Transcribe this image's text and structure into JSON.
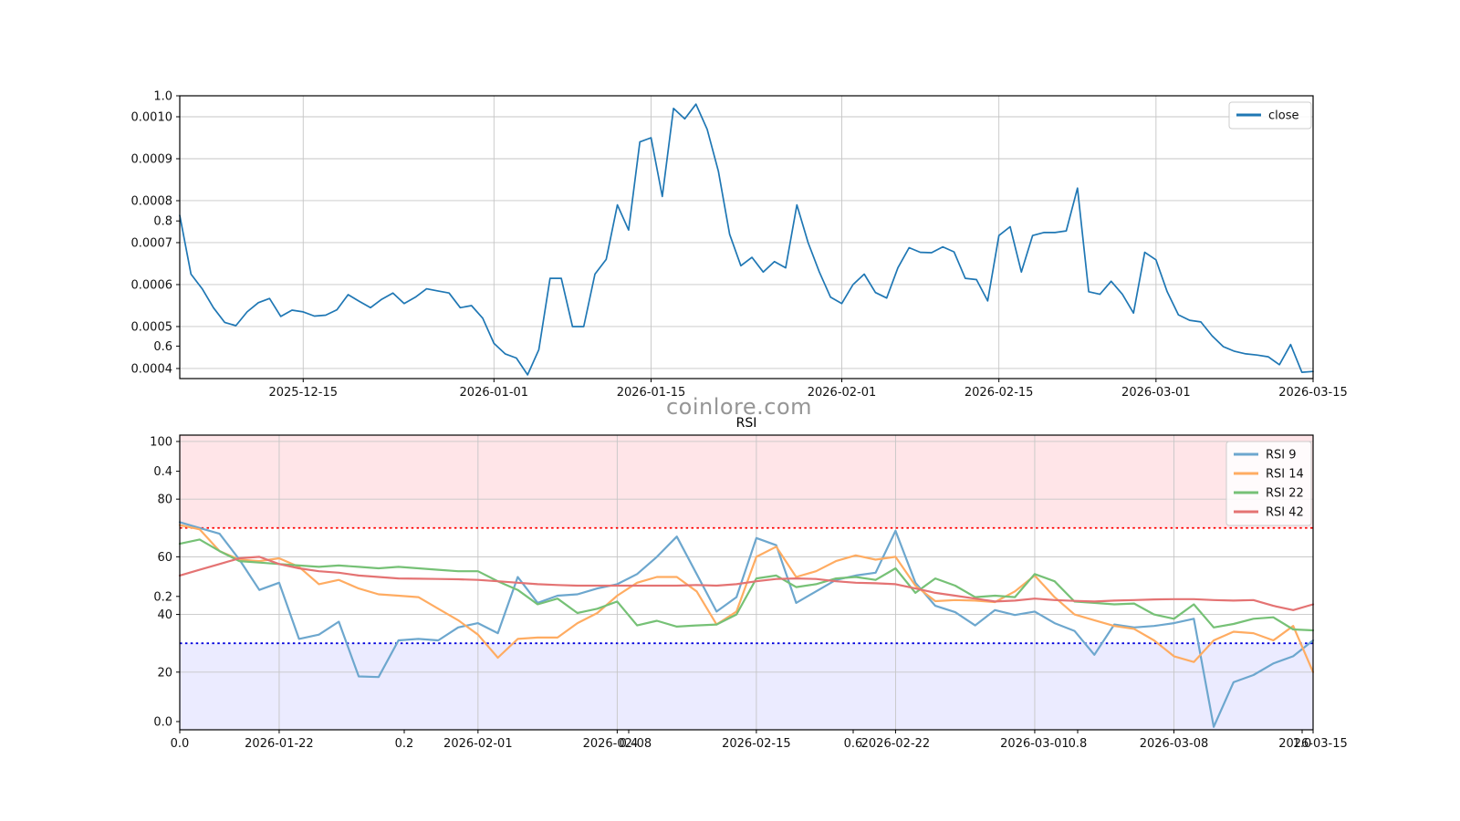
{
  "watermark": "coinlore.com",
  "overlay_axis": {
    "y_labels": [
      "1.0",
      "0.8",
      "0.6",
      "0.4",
      "0.2",
      "0.0"
    ],
    "x_labels": [
      "0.0",
      "0.2",
      "0.4",
      "0.6",
      "0.8",
      "1.0"
    ]
  },
  "chart_data": [
    {
      "type": "line",
      "panel": "price",
      "title": "",
      "x_start": "2025-12-04",
      "x_end": "2026-03-15",
      "ylim": [
        0.000376,
        0.00105
      ],
      "grid": true,
      "x_ticks": [
        {
          "label": "2025-12-15",
          "date": "2025-12-15"
        },
        {
          "label": "2026-01-01",
          "date": "2026-01-01"
        },
        {
          "label": "2026-01-15",
          "date": "2026-01-15"
        },
        {
          "label": "2026-02-01",
          "date": "2026-02-01"
        },
        {
          "label": "2026-02-15",
          "date": "2026-02-15"
        },
        {
          "label": "2026-03-01",
          "date": "2026-03-01"
        },
        {
          "label": "2026-03-15",
          "date": "2026-03-15"
        }
      ],
      "y_ticks": [
        {
          "label": "0.0010",
          "value": 0.001
        },
        {
          "label": "0.0009",
          "value": 0.0009
        },
        {
          "label": "0.0008",
          "value": 0.0008
        },
        {
          "label": "0.0007",
          "value": 0.0007
        },
        {
          "label": "0.0006",
          "value": 0.0006
        },
        {
          "label": "0.0005",
          "value": 0.0005
        },
        {
          "label": "0.0004",
          "value": 0.0004
        }
      ],
      "legend": {
        "position": "upper right",
        "entries": [
          "close"
        ]
      },
      "series": [
        {
          "name": "close",
          "color": "#1f77b4",
          "width": 1.7,
          "values": [
            0.000765,
            0.000625,
            0.00059,
            0.000545,
            0.00051,
            0.000502,
            0.000535,
            0.000557,
            0.000567,
            0.000524,
            0.000539,
            0.000535,
            0.000525,
            0.000527,
            0.00054,
            0.000576,
            0.00056,
            0.000545,
            0.000565,
            0.00058,
            0.000555,
            0.00057,
            0.00059,
            0.000585,
            0.00058,
            0.000545,
            0.00055,
            0.00052,
            0.00046,
            0.000435,
            0.000425,
            0.000385,
            0.000445,
            0.000615,
            0.000615,
            0.0005,
            0.0005,
            0.000625,
            0.00066,
            0.00079,
            0.00073,
            0.00094,
            0.00095,
            0.00081,
            0.00102,
            0.000995,
            0.00103,
            0.00097,
            0.00087,
            0.00072,
            0.000645,
            0.000665,
            0.00063,
            0.000655,
            0.00064,
            0.00079,
            0.0007,
            0.00063,
            0.00057,
            0.000555,
            0.0006,
            0.000625,
            0.000581,
            0.000568,
            0.00064,
            0.000688,
            0.000677,
            0.000676,
            0.00069,
            0.000678,
            0.000615,
            0.000612,
            0.000561,
            0.000717,
            0.000738,
            0.00063,
            0.000717,
            0.000724,
            0.000724,
            0.000728,
            0.00083,
            0.000583,
            0.000577,
            0.000608,
            0.000577,
            0.000532,
            0.000677,
            0.000659,
            0.000583,
            0.000528,
            0.000515,
            0.000511,
            0.000478,
            0.000452,
            0.000441,
            0.000435,
            0.000432,
            0.000428,
            0.000409,
            0.000457,
            0.000391,
            0.000393
          ]
        }
      ]
    },
    {
      "type": "line",
      "panel": "rsi",
      "title": "RSI",
      "x_start": "2026-01-17",
      "x_end": "2026-03-15",
      "ylim": [
        0,
        102.2
      ],
      "grid": true,
      "bands": [
        {
          "name": "overbought-band",
          "from": 70,
          "to": 102.2,
          "color": "rgba(255,0,30,0.10)"
        },
        {
          "name": "oversold-band",
          "from": 0,
          "to": 30,
          "color": "rgba(60,60,255,0.10)"
        }
      ],
      "hlines": [
        {
          "name": "overbought-line",
          "value": 70,
          "color": "#ff0000"
        },
        {
          "name": "oversold-line",
          "value": 30,
          "color": "#0000dd"
        }
      ],
      "x_ticks": [
        {
          "label": "2026-01-22",
          "date": "2026-01-22"
        },
        {
          "label": "2026-02-01",
          "date": "2026-02-01"
        },
        {
          "label": "2026-02-08",
          "date": "2026-02-08"
        },
        {
          "label": "2026-02-15",
          "date": "2026-02-15"
        },
        {
          "label": "2026-02-22",
          "date": "2026-02-22"
        },
        {
          "label": "2026-03-01",
          "date": "2026-03-01"
        },
        {
          "label": "2026-03-08",
          "date": "2026-03-08"
        },
        {
          "label": "2026-03-15",
          "date": "2026-03-15"
        }
      ],
      "y_ticks": [
        {
          "label": "100",
          "value": 100
        },
        {
          "label": "80",
          "value": 80
        },
        {
          "label": "60",
          "value": 60
        },
        {
          "label": "40",
          "value": 40
        },
        {
          "label": "20",
          "value": 20
        }
      ],
      "legend": {
        "position": "upper right",
        "entries": [
          "RSI 9",
          "RSI 14",
          "RSI 22",
          "RSI 42"
        ]
      },
      "series": [
        {
          "name": "RSI 9",
          "color": "#6da7ce",
          "width": 2.2,
          "values": [
            72,
            70,
            68,
            59,
            48.5,
            51,
            31.5,
            33,
            37.5,
            18.5,
            18.3,
            31,
            31.5,
            31,
            35.5,
            37,
            33.5,
            53,
            44,
            46.5,
            47,
            49,
            50.5,
            54,
            60,
            67,
            54,
            41,
            46,
            66.5,
            64,
            44,
            48,
            52,
            53.5,
            54.5,
            69,
            51,
            43,
            40.8,
            36.2,
            41.5,
            39.8,
            41,
            37,
            34.3,
            26,
            36.5,
            35.5,
            36,
            37,
            38.5,
            1,
            16.5,
            19,
            23,
            25.5,
            31
          ]
        },
        {
          "name": "RSI 14",
          "color": "#ffac62",
          "width": 2.2,
          "values": [
            71,
            69.5,
            62,
            59,
            58.5,
            59.5,
            56.5,
            50.5,
            52,
            49,
            47,
            46.5,
            46,
            42,
            38,
            33,
            25,
            31.5,
            32,
            32,
            37,
            40.5,
            46.5,
            51,
            53,
            53,
            48,
            36.5,
            41,
            60,
            63.5,
            53,
            55,
            58.5,
            60.5,
            59,
            60,
            50,
            44.6,
            45,
            44.8,
            44.3,
            48,
            53.5,
            46,
            40,
            38,
            36,
            35,
            31,
            25.5,
            23.5,
            31,
            34,
            33.5,
            31,
            36,
            20
          ]
        },
        {
          "name": "RSI 22",
          "color": "#76c176",
          "width": 2.2,
          "values": [
            64.5,
            66,
            62,
            58.5,
            58,
            57.5,
            57,
            56.5,
            57,
            56.5,
            56,
            56.5,
            56,
            55.5,
            55,
            55,
            51.5,
            48.5,
            43.5,
            45.5,
            40.5,
            42,
            44.5,
            36.2,
            37.8,
            35.8,
            36.2,
            36.5,
            40,
            52.5,
            53.5,
            49.5,
            50.5,
            52.5,
            53,
            52,
            56,
            47.5,
            52.5,
            50,
            46,
            46.5,
            46,
            54,
            51.5,
            44.5,
            44,
            43.5,
            43.8,
            40,
            38.5,
            43.5,
            35.5,
            36.7,
            38.5,
            39,
            34.8,
            34.5
          ]
        },
        {
          "name": "RSI 42",
          "color": "#e47373",
          "width": 2.2,
          "values": [
            53.5,
            55.5,
            57.5,
            59.5,
            60,
            57.5,
            56,
            55,
            54.5,
            53.5,
            53,
            52.5,
            52.4,
            52.3,
            52.2,
            52,
            51.5,
            51,
            50.5,
            50.2,
            50,
            50,
            50,
            50,
            50,
            50,
            50.2,
            50,
            50.5,
            51.5,
            52.3,
            52.5,
            52.3,
            51.5,
            51,
            50.8,
            50.5,
            49,
            47.5,
            46.5,
            45.5,
            44.5,
            44.8,
            45.5,
            45,
            44.7,
            44.5,
            44.8,
            45,
            45.2,
            45.3,
            45.3,
            45,
            44.8,
            45,
            43,
            41.5,
            43.5
          ]
        }
      ]
    }
  ]
}
